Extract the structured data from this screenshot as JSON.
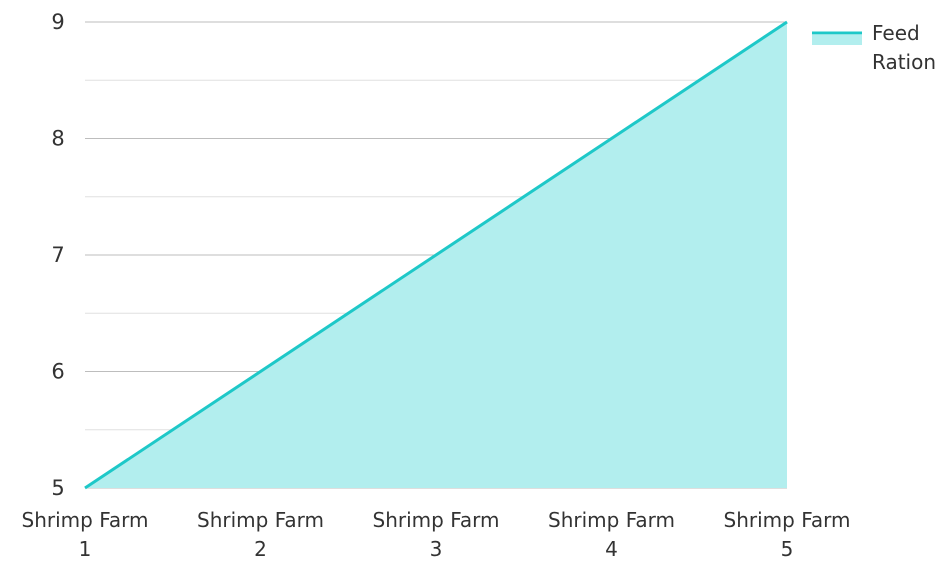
{
  "chart_data": {
    "type": "area",
    "categories": [
      "Shrimp Farm 1",
      "Shrimp Farm 2",
      "Shrimp Farm 3",
      "Shrimp Farm 4",
      "Shrimp Farm 5"
    ],
    "category_lines": [
      [
        "Shrimp Farm",
        "1"
      ],
      [
        "Shrimp Farm",
        "2"
      ],
      [
        "Shrimp Farm",
        "3"
      ],
      [
        "Shrimp Farm",
        "4"
      ],
      [
        "Shrimp Farm",
        "5"
      ]
    ],
    "series": [
      {
        "name": "Feed Ration",
        "name_lines": [
          "Feed",
          "Ration"
        ],
        "values": [
          5,
          6,
          7,
          8,
          9
        ]
      }
    ],
    "ylim": [
      5,
      9
    ],
    "y_ticks": [
      5,
      6,
      7,
      8,
      9
    ],
    "y_minor_step": 0.5,
    "grid": true,
    "legend_position": "top-right",
    "title": "",
    "xlabel": "",
    "ylabel": "",
    "colors": {
      "line": "#1ec8c8",
      "fill": "#b2eeee",
      "major_grid": "#bdbdbd",
      "minor_grid": "#e0e0e0",
      "text": "#333333"
    }
  }
}
